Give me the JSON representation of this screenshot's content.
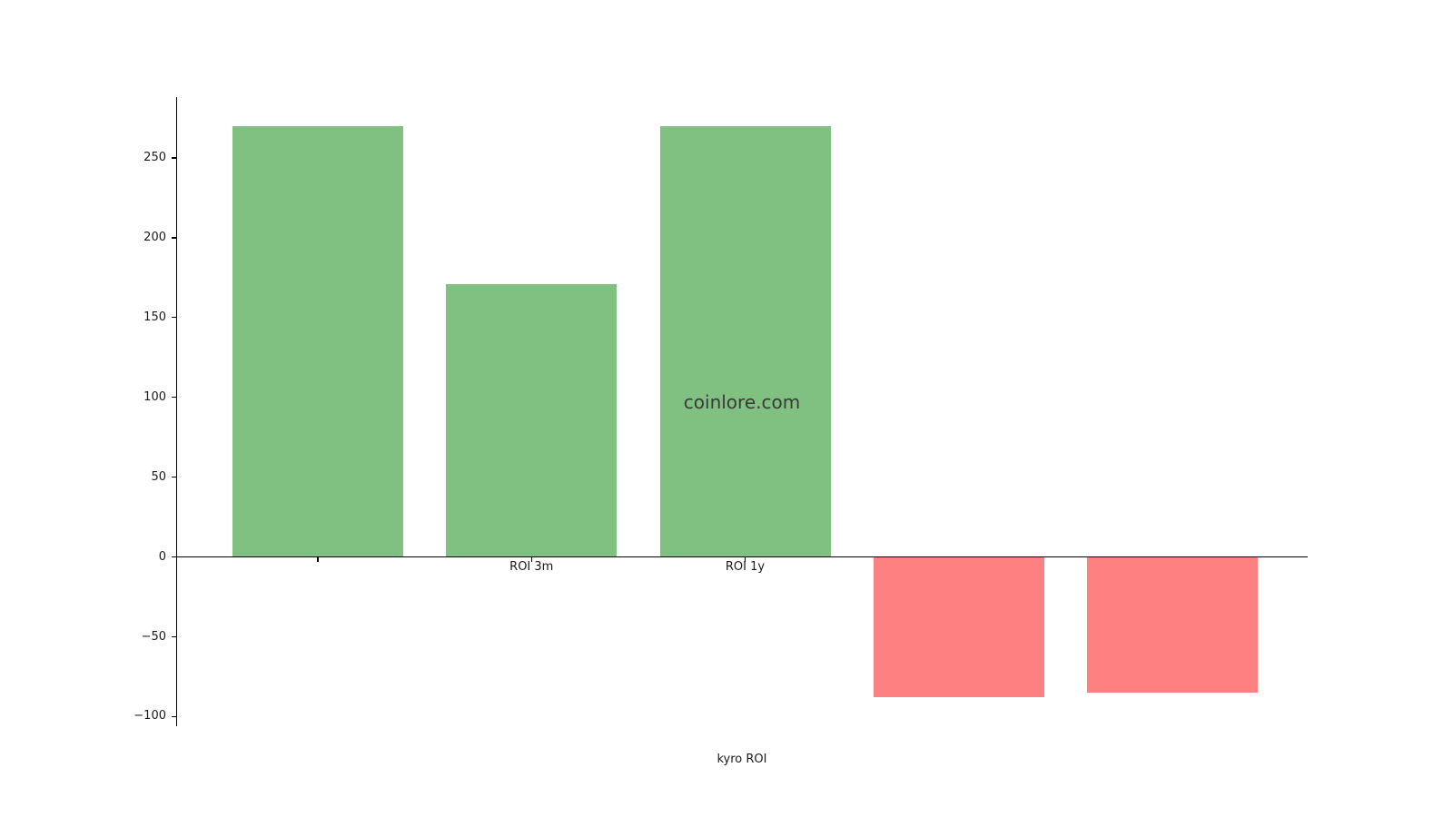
{
  "watermark": "coinlore.com",
  "colors": {
    "positive_bar": "#80c080",
    "negative_bar": "#ff8080",
    "axis": "#000000",
    "tick_text": "#1a1a1a",
    "watermark_text": "#3a3a3a",
    "background": "#ffffff"
  },
  "chart_data": {
    "type": "bar",
    "title": "kyro ROI",
    "xlabel": "kyro ROI",
    "ylabel": "",
    "categories": [
      "",
      "ROI 3m",
      "ROI 1y",
      "",
      ""
    ],
    "values": [
      270,
      171,
      270,
      -88,
      -85
    ],
    "bar_colors": [
      "#80c080",
      "#80c080",
      "#80c080",
      "#ff8080",
      "#ff8080"
    ],
    "yticks": [
      250,
      200,
      150,
      100,
      50,
      0,
      -50,
      -100
    ],
    "ytick_labels": [
      "250",
      "200",
      "150",
      "100",
      "50",
      "0",
      "−50",
      "−100"
    ],
    "ylim": [
      -106,
      288
    ],
    "grid": false,
    "legend": "none",
    "note": "x tick marks visible only for first three bars; negative bars cover their tick marks and labels"
  }
}
